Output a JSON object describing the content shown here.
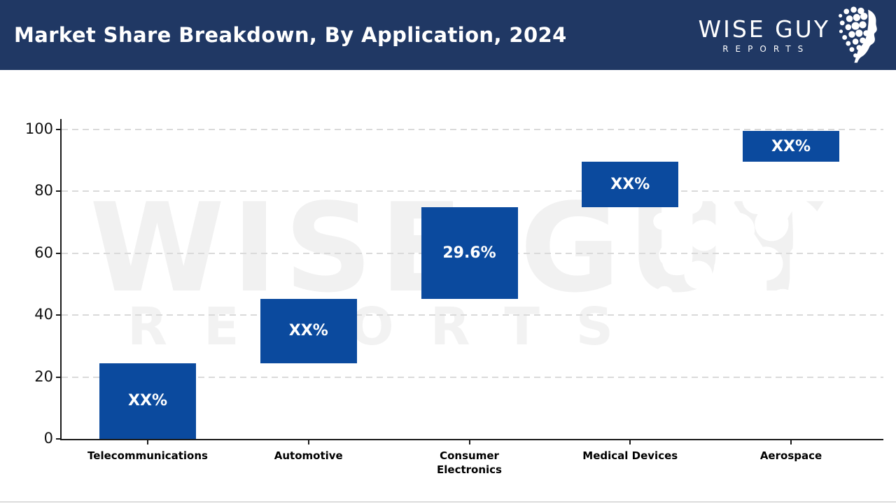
{
  "header": {
    "title": "Market Share Breakdown, By Application, 2024",
    "logo": {
      "name": "WISE GUY",
      "subname": "REPORTS"
    }
  },
  "watermark": {
    "line1": "WISE GUY",
    "line2": "REPORTS"
  },
  "chart_data": {
    "type": "bar",
    "variant": "floating-segment (waterfall-style stacked breakdown, single series)",
    "title": "Market Share Breakdown, By Application, 2024",
    "categories": [
      "Telecommunications",
      "Automotive",
      "Consumer Electronics",
      "Medical Devices",
      "Aerospace"
    ],
    "segments": [
      {
        "category": "Telecommunications",
        "from": 0,
        "to": 24.5,
        "label": "XX%"
      },
      {
        "category": "Automotive",
        "from": 24.5,
        "to": 45.2,
        "label": "XX%"
      },
      {
        "category": "Consumer Electronics",
        "from": 45.2,
        "to": 74.8,
        "label": "29.6%",
        "value": 29.6
      },
      {
        "category": "Medical Devices",
        "from": 74.8,
        "to": 89.6,
        "label": "XX%"
      },
      {
        "category": "Aerospace",
        "from": 89.6,
        "to": 99.5,
        "label": "XX%"
      }
    ],
    "xlabel": "",
    "ylabel": "",
    "ylim": [
      0,
      105
    ],
    "yticks": [
      0,
      20,
      40,
      60,
      80,
      100
    ],
    "grid": "horizontal-dashed",
    "legend": "none",
    "colors": {
      "bar": "#0b4a9e",
      "grid": "#dadada",
      "axis": "#1a1a1a",
      "bar_label_text": "#ffffff",
      "tick_text": "#111111"
    }
  },
  "theme": {
    "header_bg": "#203864",
    "page_bg": "#ffffff",
    "watermark_color": "#f1f1f1"
  }
}
